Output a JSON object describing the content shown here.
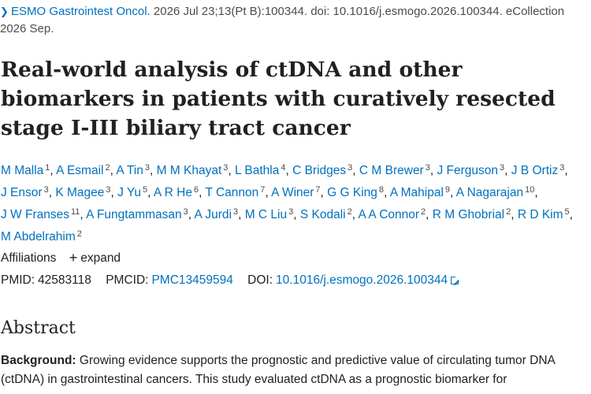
{
  "citation": {
    "journal": "ESMO Gastrointest Oncol.",
    "details": " 2026 Jul 23;13(Pt B):100344. doi: 10.1016/j.esmogo.2026.100344. eCollection 2026 Sep."
  },
  "title": "Real-world analysis of ctDNA and other biomarkers in patients with curatively resected stage I-III biliary tract cancer",
  "authors": [
    {
      "name": "M Malla",
      "aff": "1"
    },
    {
      "name": "A Esmail",
      "aff": "2"
    },
    {
      "name": "A Tin",
      "aff": "3"
    },
    {
      "name": "M M Khayat",
      "aff": "3"
    },
    {
      "name": "L Bathla",
      "aff": "4"
    },
    {
      "name": "C Bridges",
      "aff": "3"
    },
    {
      "name": "C M Brewer",
      "aff": "3"
    },
    {
      "name": "J Ferguson",
      "aff": "3"
    },
    {
      "name": "J B Ortiz",
      "aff": "3"
    },
    {
      "name": "J Ensor",
      "aff": "3"
    },
    {
      "name": "K Magee",
      "aff": "3"
    },
    {
      "name": "J Yu",
      "aff": "5"
    },
    {
      "name": "A R He",
      "aff": "6"
    },
    {
      "name": "T Cannon",
      "aff": "7"
    },
    {
      "name": "A Winer",
      "aff": "7"
    },
    {
      "name": "G G King",
      "aff": "8"
    },
    {
      "name": "A Mahipal",
      "aff": "9"
    },
    {
      "name": "A Nagarajan",
      "aff": "10"
    },
    {
      "name": "J W Franses",
      "aff": "11"
    },
    {
      "name": "A Fungtammasan",
      "aff": "3"
    },
    {
      "name": "A Jurdi",
      "aff": "3"
    },
    {
      "name": "M C Liu",
      "aff": "3"
    },
    {
      "name": "S Kodali",
      "aff": "2"
    },
    {
      "name": "A A Connor",
      "aff": "2"
    },
    {
      "name": "R M Ghobrial",
      "aff": "2"
    },
    {
      "name": "R D Kim",
      "aff": "5"
    },
    {
      "name": "M Abdelrahim",
      "aff": "2"
    }
  ],
  "affiliations": {
    "label": "Affiliations",
    "expand": "expand"
  },
  "ids": {
    "pmid_label": "PMID:",
    "pmid": "42583118",
    "pmcid_label": "PMCID:",
    "pmcid": "PMC13459594",
    "doi_label": "DOI:",
    "doi": "10.1016/j.esmogo.2026.100344"
  },
  "abstract": {
    "heading": "Abstract",
    "background_label": "Background:",
    "background_text": " Growing evidence supports the prognostic and predictive value of circulating tumor DNA (ctDNA) in gastrointestinal cancers. This study evaluated ctDNA as a prognostic biomarker for"
  },
  "colors": {
    "link": "#0071bc",
    "text": "#212121",
    "muted": "#4c4c4c"
  }
}
